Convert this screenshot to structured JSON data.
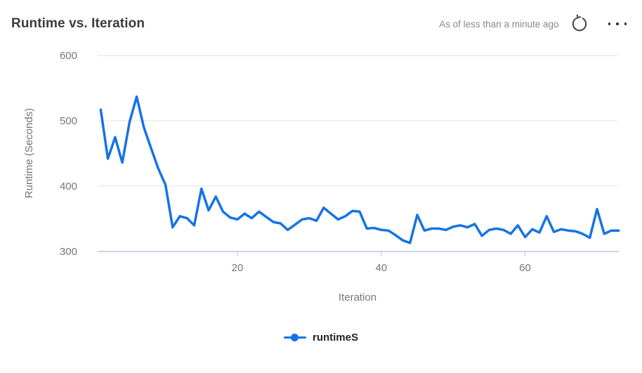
{
  "header": {
    "title": "Runtime vs. Iteration",
    "status_text": "As of less than a minute ago"
  },
  "icons": {
    "refresh": "refresh-icon",
    "more": "ellipsis-icon",
    "legend_marker": "line-with-dot-marker"
  },
  "colors": {
    "series_line": "#1673e6",
    "gridline": "#e6e6e6",
    "axis_line": "#ccd5eb",
    "tick_label": "#767676",
    "title_text": "#3d3c3b",
    "status_text": "#8a8886",
    "legend_text": "#252423"
  },
  "chart_data": {
    "type": "line",
    "title": "Runtime vs. Iteration",
    "xlabel": "Iteration",
    "ylabel": "Runtime (Seconds)",
    "x_ticks": [
      20,
      40,
      60
    ],
    "y_ticks": [
      300,
      400,
      500,
      600
    ],
    "xlim": [
      1,
      73
    ],
    "ylim": [
      300,
      600
    ],
    "grid": "horizontal",
    "legend_position": "bottom",
    "series": [
      {
        "name": "runtimeS",
        "color": "#1673e6",
        "x": [
          1,
          2,
          3,
          4,
          5,
          6,
          7,
          8,
          9,
          10,
          11,
          12,
          13,
          14,
          15,
          16,
          17,
          18,
          19,
          20,
          21,
          22,
          23,
          24,
          25,
          26,
          27,
          28,
          29,
          30,
          31,
          32,
          33,
          34,
          35,
          36,
          37,
          38,
          39,
          40,
          41,
          42,
          43,
          44,
          45,
          46,
          47,
          48,
          49,
          50,
          51,
          52,
          53,
          54,
          55,
          56,
          57,
          58,
          59,
          60,
          61,
          62,
          63,
          64,
          65,
          66,
          67,
          68,
          69,
          70,
          71,
          72,
          73
        ],
        "values": [
          517,
          442,
          475,
          436,
          498,
          537,
          490,
          458,
          427,
          402,
          337,
          354,
          351,
          340,
          396,
          363,
          384,
          361,
          352,
          349,
          358,
          351,
          361,
          353,
          345,
          343,
          333,
          341,
          349,
          351,
          347,
          367,
          358,
          349,
          354,
          362,
          361,
          335,
          336,
          333,
          332,
          325,
          317,
          313,
          356,
          332,
          335,
          335,
          333,
          338,
          340,
          337,
          342,
          324,
          333,
          335,
          333,
          327,
          340,
          322,
          334,
          329,
          354,
          330,
          334,
          332,
          331,
          327,
          321,
          365,
          327,
          332,
          332
        ]
      }
    ]
  },
  "legend": {
    "items": [
      {
        "label": "runtimeS",
        "color": "#1673e6"
      }
    ]
  }
}
